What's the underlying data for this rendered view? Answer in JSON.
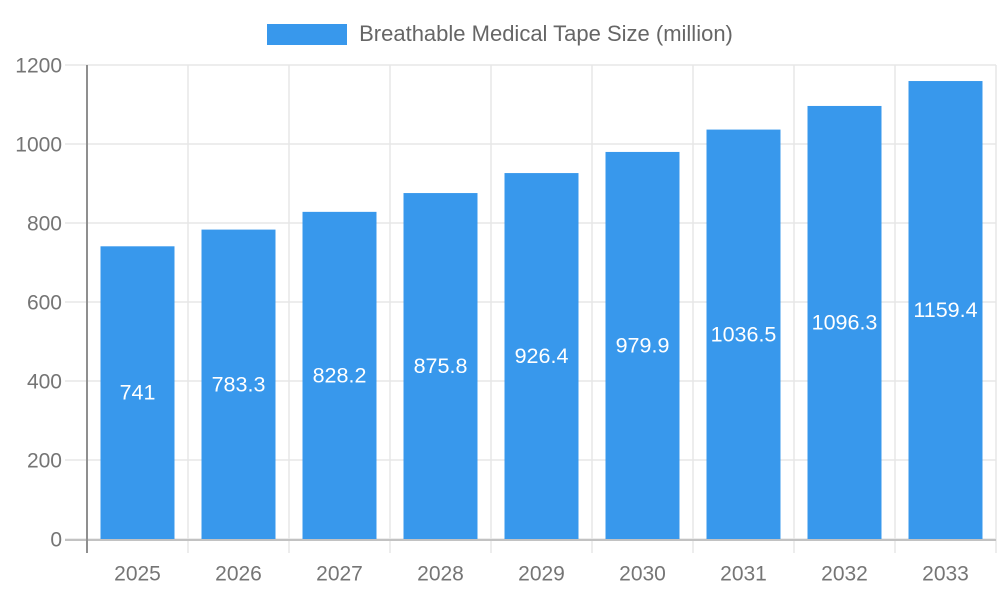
{
  "chart_data": {
    "type": "bar",
    "title": "Breathable Medical Tape Size (million)",
    "legend": "Breathable Medical Tape Size (million)",
    "legend_position": "top-center",
    "categories": [
      "2025",
      "2026",
      "2027",
      "2028",
      "2029",
      "2030",
      "2031",
      "2032",
      "2033"
    ],
    "series": [
      {
        "name": "Breathable Medical Tape Size (million)",
        "values": [
          741,
          783.3,
          828.2,
          875.8,
          926.4,
          979.9,
          1036.5,
          1096.3,
          1159.4
        ]
      }
    ],
    "xlabel": "",
    "ylabel": "",
    "ylim": [
      0,
      1200
    ],
    "yticks": [
      0,
      200,
      400,
      600,
      800,
      1000,
      1200
    ],
    "grid": true,
    "value_label_position": "inside-bar-center",
    "colors": {
      "bar": "#3898ec",
      "grid": "#e7e7e7",
      "baseline": "#c2c2c2",
      "axis": "#8f8f8f",
      "tick_text": "#757575",
      "legend_text": "#666666",
      "value_label": "#ffffff",
      "background": "#ffffff"
    }
  }
}
